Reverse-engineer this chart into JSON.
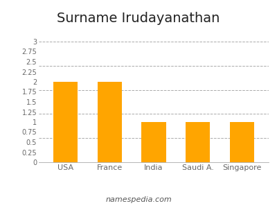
{
  "title": "Surname Irudayanathan",
  "categories": [
    "USA",
    "France",
    "India",
    "Saudi A.",
    "Singapore"
  ],
  "values": [
    2,
    2,
    1,
    1,
    1
  ],
  "bar_color": "#FFA500",
  "ylim": [
    0,
    3
  ],
  "yticks": [
    0,
    0.25,
    0.5,
    0.75,
    1,
    1.25,
    1.5,
    1.75,
    2,
    2.25,
    2.5,
    2.75,
    3
  ],
  "grid_ticks": [
    0.6,
    1.2,
    1.8,
    2.4,
    3.0
  ],
  "background_color": "#ffffff",
  "title_fontsize": 14,
  "tick_fontsize": 8,
  "footer": "namespedia.com",
  "footer_fontsize": 8
}
